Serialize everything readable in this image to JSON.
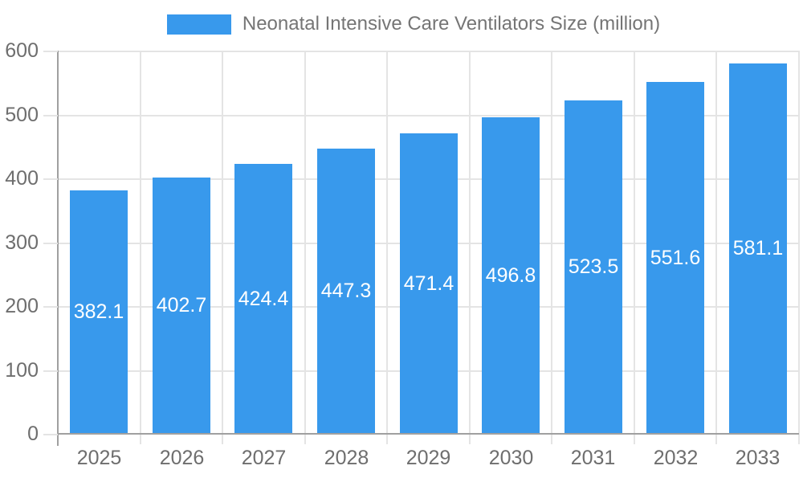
{
  "chart_data": {
    "type": "bar",
    "title": "Neonatal Intensive Care Ventilators Size (million)",
    "legend_position": "top",
    "categories": [
      "2025",
      "2026",
      "2027",
      "2028",
      "2029",
      "2030",
      "2031",
      "2032",
      "2033"
    ],
    "values": [
      382.1,
      402.7,
      424.4,
      447.3,
      471.4,
      496.8,
      523.5,
      551.6,
      581.1
    ],
    "value_labels": [
      "382.1",
      "402.7",
      "424.4",
      "447.3",
      "471.4",
      "496.8",
      "523.5",
      "551.6",
      "581.1"
    ],
    "xlabel": "",
    "ylabel": "",
    "ylim": [
      0,
      600
    ],
    "yticks": [
      0,
      100,
      200,
      300,
      400,
      500,
      600
    ],
    "ytick_labels": [
      "0",
      "100",
      "200",
      "300",
      "400",
      "500",
      "600"
    ],
    "grid": "on"
  },
  "colors": {
    "bar": "#3899EC",
    "grid": "#E4E4E4",
    "axis": "#A0A0A0",
    "tick_text": "#6E6E6E",
    "legend_text": "#757575",
    "value_label_text": "#FFFFFF"
  }
}
